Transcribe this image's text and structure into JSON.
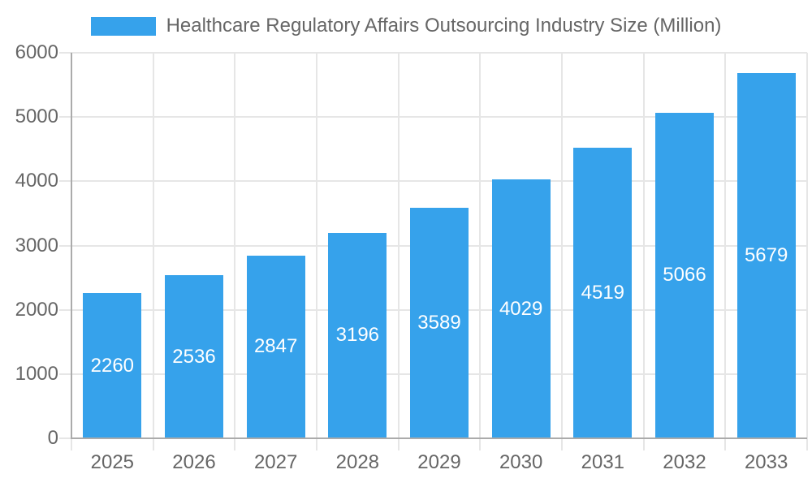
{
  "legend": {
    "label": "Healthcare Regulatory Affairs Outsourcing Industry Size (Million)"
  },
  "chart_data": {
    "type": "bar",
    "title": "Healthcare Regulatory Affairs Outsourcing Industry Size (Million)",
    "series_name": "Healthcare Regulatory Affairs Outsourcing Industry Size (Million)",
    "categories": [
      "2025",
      "2026",
      "2027",
      "2028",
      "2029",
      "2030",
      "2031",
      "2032",
      "2033"
    ],
    "values": [
      2260,
      2536,
      2847,
      3196,
      3589,
      4029,
      4519,
      5066,
      5679
    ],
    "xlabel": "",
    "ylabel": "",
    "ylim": [
      0,
      6000
    ],
    "yticks": [
      0,
      1000,
      2000,
      3000,
      4000,
      5000,
      6000
    ],
    "grid": "on",
    "legend_position": "top",
    "bar_color": "#36A2EB",
    "value_label_color": "#FFFFFF",
    "text_color": "#666666",
    "grid_color": "#E6E6E6",
    "axis_color": "#ABABAB"
  }
}
